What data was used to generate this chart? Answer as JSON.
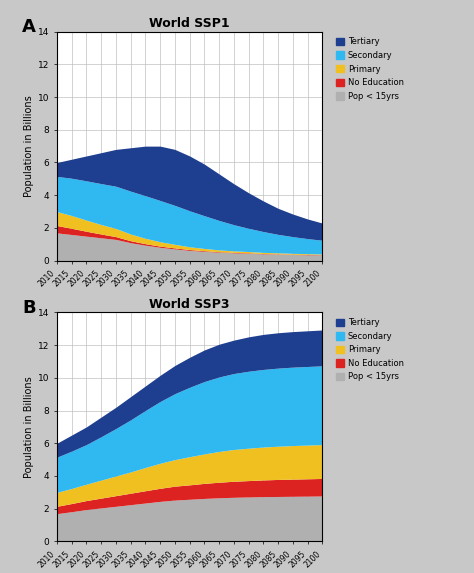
{
  "years": [
    2010,
    2015,
    2020,
    2025,
    2030,
    2035,
    2040,
    2045,
    2050,
    2055,
    2060,
    2065,
    2070,
    2075,
    2080,
    2085,
    2090,
    2095,
    2100
  ],
  "ssp1": {
    "title": "World SSP1",
    "pop_lt15": [
      1.7,
      1.6,
      1.5,
      1.4,
      1.3,
      1.1,
      0.95,
      0.82,
      0.72,
      0.63,
      0.57,
      0.52,
      0.48,
      0.45,
      0.42,
      0.4,
      0.38,
      0.36,
      0.35
    ],
    "no_edu": [
      0.45,
      0.38,
      0.3,
      0.23,
      0.17,
      0.12,
      0.09,
      0.07,
      0.06,
      0.05,
      0.04,
      0.03,
      0.03,
      0.03,
      0.02,
      0.02,
      0.02,
      0.02,
      0.02
    ],
    "primary": [
      0.85,
      0.78,
      0.68,
      0.58,
      0.5,
      0.41,
      0.33,
      0.27,
      0.22,
      0.17,
      0.14,
      0.11,
      0.09,
      0.08,
      0.07,
      0.06,
      0.05,
      0.05,
      0.04
    ],
    "secondary": [
      2.15,
      2.28,
      2.4,
      2.5,
      2.58,
      2.62,
      2.6,
      2.52,
      2.38,
      2.2,
      2.0,
      1.8,
      1.6,
      1.42,
      1.27,
      1.13,
      1.02,
      0.92,
      0.84
    ],
    "tertiary": [
      0.85,
      1.16,
      1.52,
      1.89,
      2.25,
      2.65,
      3.03,
      3.32,
      3.42,
      3.35,
      3.15,
      2.84,
      2.5,
      2.17,
      1.87,
      1.59,
      1.38,
      1.2,
      1.05
    ]
  },
  "ssp3": {
    "title": "World SSP3",
    "pop_lt15": [
      1.7,
      1.82,
      1.95,
      2.05,
      2.15,
      2.25,
      2.35,
      2.45,
      2.53,
      2.58,
      2.63,
      2.67,
      2.7,
      2.72,
      2.74,
      2.75,
      2.76,
      2.77,
      2.78
    ],
    "no_edu": [
      0.45,
      0.5,
      0.55,
      0.6,
      0.65,
      0.7,
      0.75,
      0.8,
      0.85,
      0.88,
      0.92,
      0.95,
      0.98,
      1.0,
      1.02,
      1.04,
      1.05,
      1.06,
      1.07
    ],
    "primary": [
      0.85,
      0.92,
      1.0,
      1.1,
      1.2,
      1.3,
      1.42,
      1.53,
      1.62,
      1.72,
      1.8,
      1.88,
      1.94,
      1.98,
      2.01,
      2.03,
      2.05,
      2.06,
      2.07
    ],
    "secondary": [
      2.15,
      2.28,
      2.42,
      2.65,
      2.9,
      3.18,
      3.48,
      3.77,
      4.03,
      4.24,
      4.42,
      4.55,
      4.64,
      4.7,
      4.74,
      4.77,
      4.79,
      4.8,
      4.81
    ],
    "tertiary": [
      0.85,
      0.98,
      1.08,
      1.2,
      1.3,
      1.42,
      1.5,
      1.6,
      1.72,
      1.83,
      1.93,
      2.0,
      2.04,
      2.1,
      2.14,
      2.16,
      2.17,
      2.18,
      2.19
    ]
  },
  "colors": {
    "pop_lt15": "#b0b0b0",
    "no_edu": "#dd2222",
    "primary": "#f0c020",
    "secondary": "#30b8f0",
    "tertiary": "#1e3f8f"
  },
  "labels": {
    "tertiary": "Tertiary",
    "secondary": "Secondary",
    "primary": "Primary",
    "no_edu": "No Education",
    "pop_lt15": "Pop < 15yrs"
  },
  "ylabel": "Population in Billions",
  "ylim": [
    0,
    14
  ],
  "yticks": [
    0,
    2,
    4,
    6,
    8,
    10,
    12,
    14
  ],
  "background_color": "#c8c8c8",
  "plot_bg": "#ffffff",
  "panel_labels": [
    "A",
    "B"
  ],
  "scenarios": [
    "ssp1",
    "ssp3"
  ]
}
